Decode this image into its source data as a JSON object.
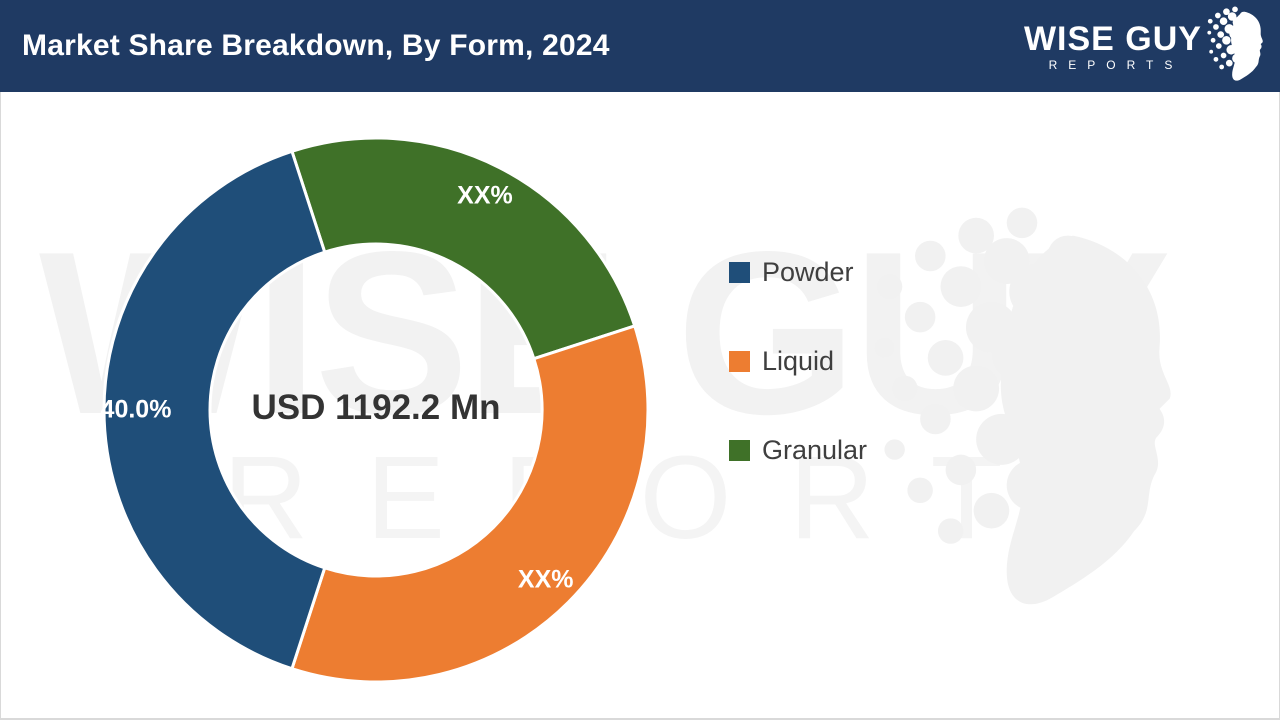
{
  "header": {
    "title": "Market Share Breakdown, By Form, 2024",
    "logo": {
      "line1": "WISE GUY",
      "line2": "REPORTS"
    }
  },
  "chart_data": {
    "type": "pie",
    "donut": true,
    "title": "Market Share Breakdown, By Form, 2024",
    "center_label": "USD 1192.2 Mn",
    "legend_position": "right",
    "start_angle_deg": -18,
    "segments": [
      {
        "label": "Powder",
        "display_value": "40.0%",
        "value_pct": 40,
        "color": "#1f4e79"
      },
      {
        "label": "Liquid",
        "display_value": "XX%",
        "value_pct": 35,
        "color": "#ed7d31"
      },
      {
        "label": "Granular",
        "display_value": "XX%",
        "value_pct": 25,
        "color": "#3f7128"
      }
    ]
  },
  "watermark": {
    "line1": "WISE GUY",
    "line2": "REPORTS"
  },
  "colors": {
    "header_bg": "#1f3a63",
    "center_text": "#333333",
    "legend_text": "#3f3f3f",
    "separator": "#ffffff",
    "border": "#d9d9d9",
    "watermark": "#f2f2f2"
  }
}
